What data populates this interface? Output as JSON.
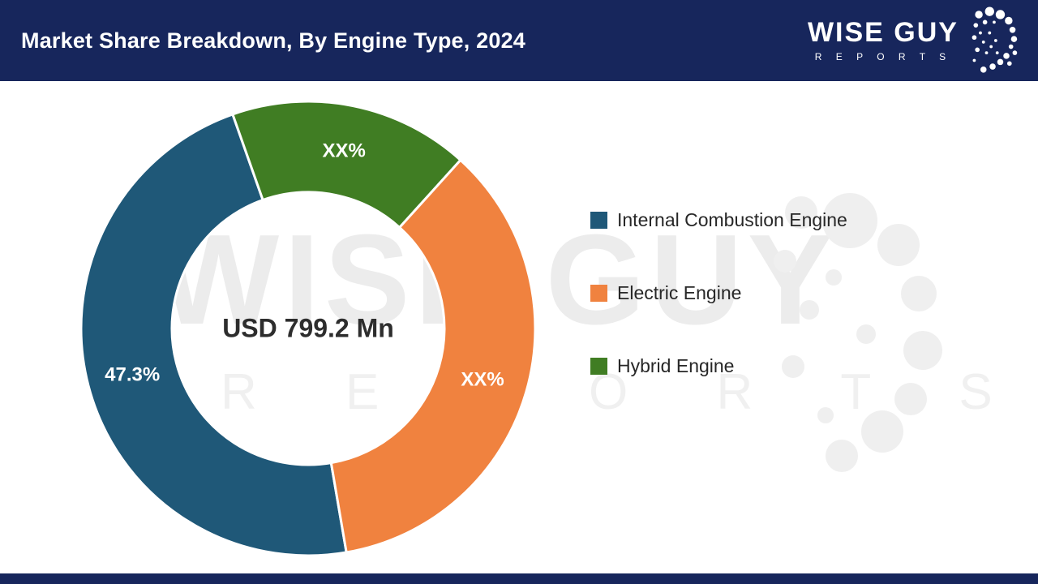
{
  "header": {
    "title": "Market Share Breakdown, By Engine Type, 2024",
    "logo": {
      "name": "WISE GUY",
      "sub": "R E P O R T S"
    }
  },
  "watermark": {
    "line1": "WISE GUY",
    "line2": "R E P O R T S"
  },
  "colors": {
    "header_bg": "#17265c",
    "footer_bg": "#17265c",
    "ice_blue": "#1f5878",
    "electric_orange": "#f0823f",
    "hybrid_green": "#407d23"
  },
  "chart_data": {
    "type": "pie",
    "donut": true,
    "title": "Market Share Breakdown, By Engine Type, 2024",
    "center_label": "USD 799.2 Mn",
    "legend_position": "right",
    "start_angle_deg": 170.3,
    "draw_order": [
      0,
      2,
      1
    ],
    "segments": [
      {
        "label": "Internal Combustion Engine",
        "value": 47.3,
        "display": "47.3%",
        "color": "#1f5878"
      },
      {
        "label": "Electric Engine",
        "value": 35.6,
        "display": "XX%",
        "color": "#f0823f"
      },
      {
        "label": "Hybrid Engine",
        "value": 17.1,
        "display": "XX%",
        "color": "#407d23"
      }
    ]
  }
}
